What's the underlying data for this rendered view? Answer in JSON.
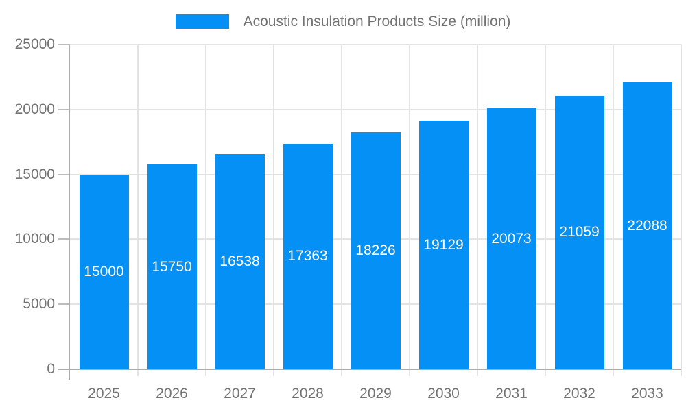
{
  "legend": {
    "label": "Acoustic Insulation Products Size (million)"
  },
  "chart_data": {
    "type": "bar",
    "series_name": "Acoustic Insulation Products Size (million)",
    "categories": [
      "2025",
      "2026",
      "2027",
      "2028",
      "2029",
      "2030",
      "2031",
      "2032",
      "2033"
    ],
    "values": [
      15000,
      15750,
      16538,
      17363,
      18226,
      19129,
      20073,
      21059,
      22088
    ],
    "value_labels": [
      "15000",
      "15750",
      "16538",
      "17363",
      "18226",
      "19129",
      "20073",
      "21059",
      "22088"
    ],
    "title": "",
    "xlabel": "",
    "ylabel": "",
    "ylim": [
      0,
      25000
    ],
    "yticks": [
      0,
      5000,
      10000,
      15000,
      20000,
      25000
    ],
    "grid": true,
    "legend_position": "top-center",
    "value_label_position": "inside-center",
    "colors": {
      "bar": "#0590F5",
      "value_label": "#FFFFFF",
      "axis_line": "#ADADAD",
      "gridline": "#E3E3E3",
      "tick": "#BDBDBD",
      "below_axis_tick": "#E3E3E3",
      "text": "#737373",
      "background": "#FFFFFF"
    }
  }
}
